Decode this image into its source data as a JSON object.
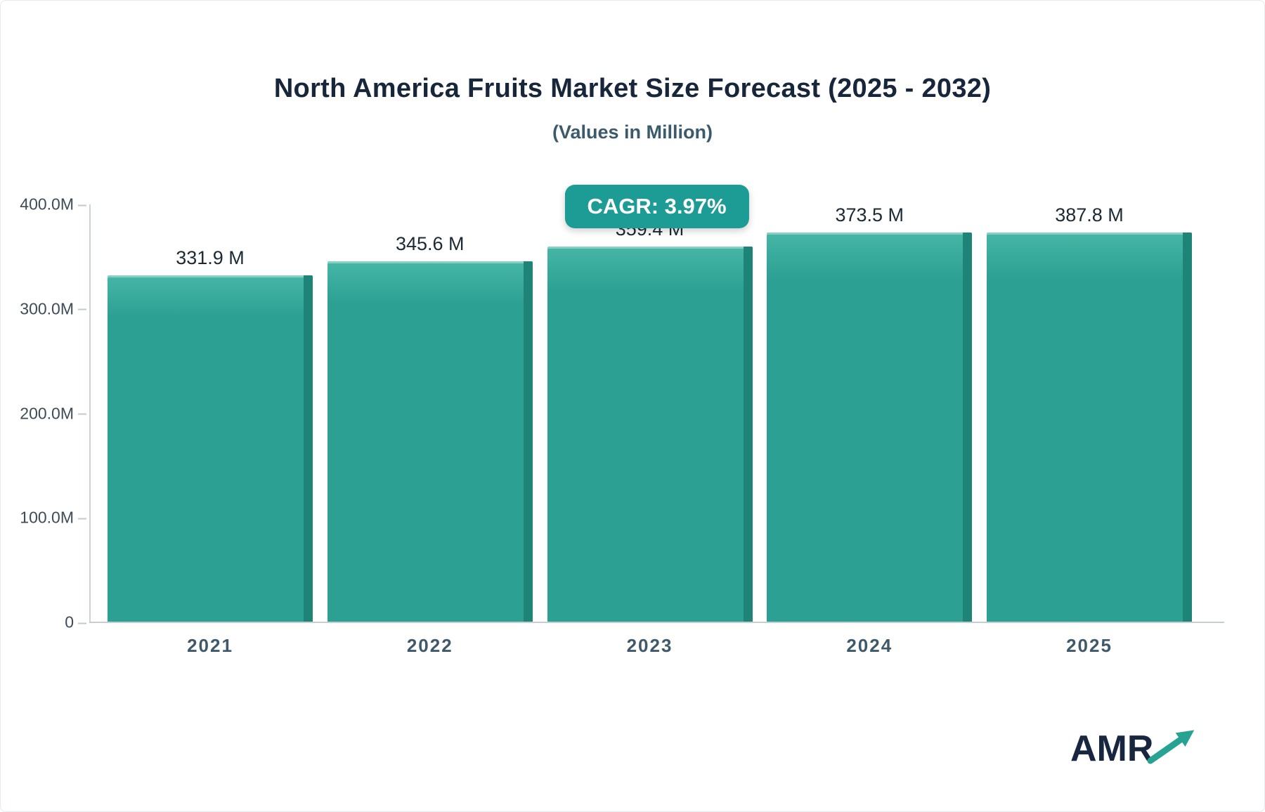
{
  "chart_data": {
    "type": "bar",
    "title": "North America Fruits Market Size Forecast (2025 - 2032)",
    "subtitle": "(Values in Million)",
    "categories": [
      "2021",
      "2022",
      "2023",
      "2024",
      "2025"
    ],
    "values": [
      331.9,
      345.6,
      359.4,
      373.5,
      387.8
    ],
    "value_labels": [
      "331.9 M",
      "345.6 M",
      "359.4 M",
      "373.5 M",
      "387.8 M"
    ],
    "yticks": [
      "400.0M",
      "300.0M",
      "200.0M",
      "100.0M",
      "0"
    ],
    "ylim": [
      0,
      400
    ],
    "xlabel": "",
    "ylabel": "",
    "grid": false,
    "legend": false,
    "annotation": "CAGR: 3.97%",
    "cagr_percent": 3.97,
    "bar_color": "#2ca093",
    "bar_side_color": "#1e8478",
    "annotation_bg": "#1c9c94"
  },
  "branding": {
    "logo_text": "AMR",
    "logo_color": "#18263f",
    "arrow_color": "#27a393"
  }
}
